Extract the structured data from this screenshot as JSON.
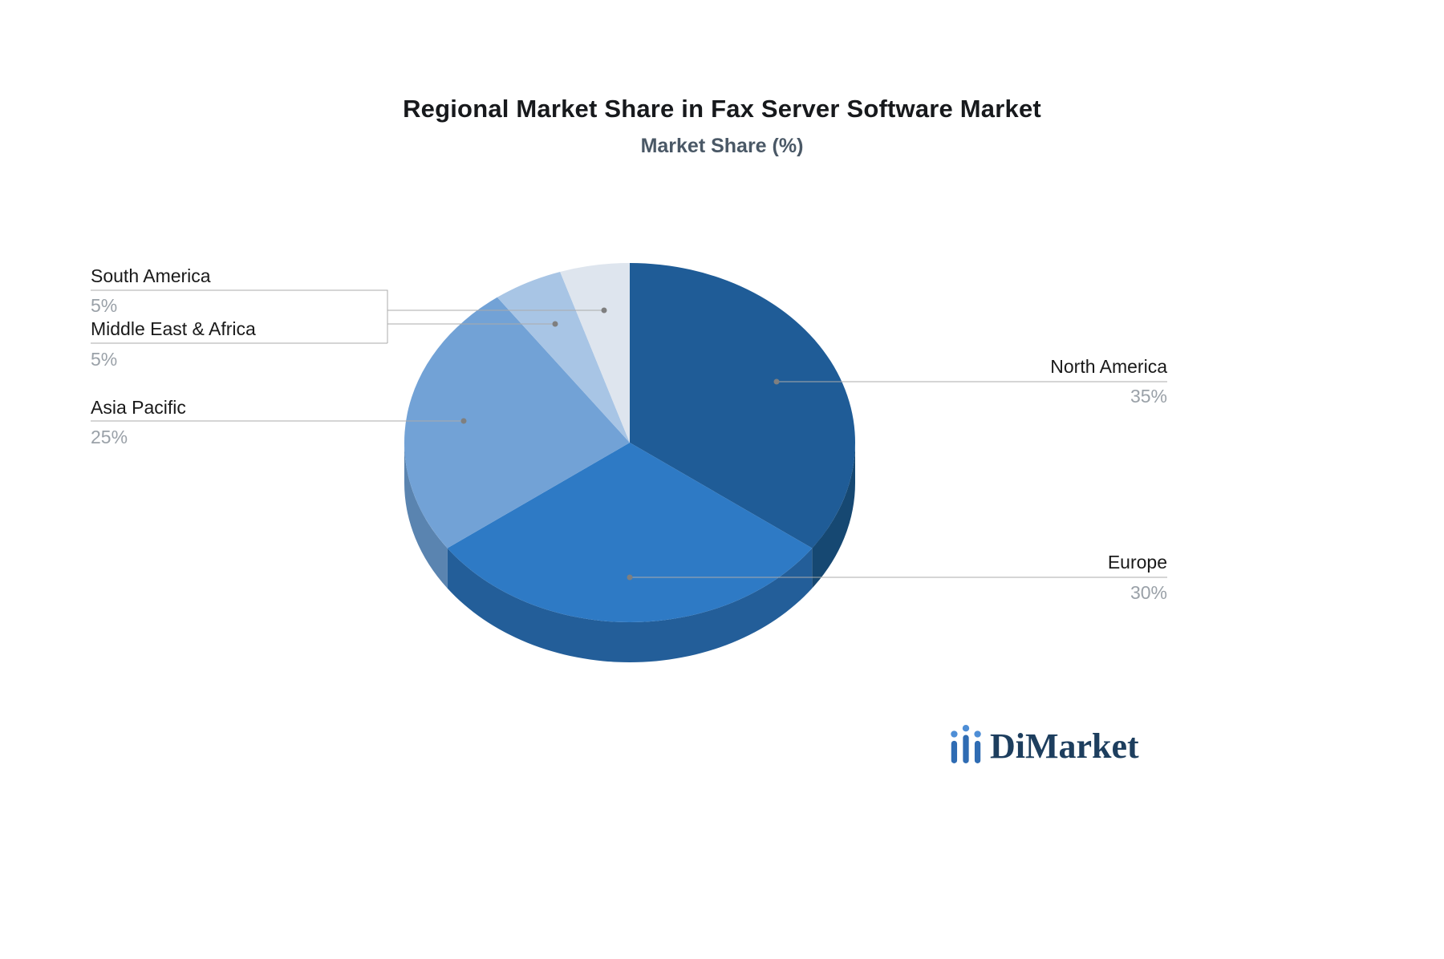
{
  "chart_data": {
    "type": "pie",
    "title": "Regional Market Share in Fax Server Software Market",
    "subtitle": "Market Share (%)",
    "unit": "%",
    "legend_position": "none",
    "style": "3d-pie",
    "slices": [
      {
        "label": "North America",
        "value": 35,
        "color": "#1f5c97",
        "side_color": "#164872"
      },
      {
        "label": "Europe",
        "value": 30,
        "color": "#2e7ac5",
        "side_color": "#235e99"
      },
      {
        "label": "Asia Pacific",
        "value": 25,
        "color": "#72a2d6",
        "side_color": "#5a84b0"
      },
      {
        "label": "Middle East & Africa",
        "value": 5,
        "color": "#a8c5e5",
        "side_color": "#88a8c8"
      },
      {
        "label": "South America",
        "value": 5,
        "color": "#dee5ee",
        "side_color": "#b9c4d2"
      }
    ]
  },
  "logo": {
    "text": "DiMarket"
  }
}
